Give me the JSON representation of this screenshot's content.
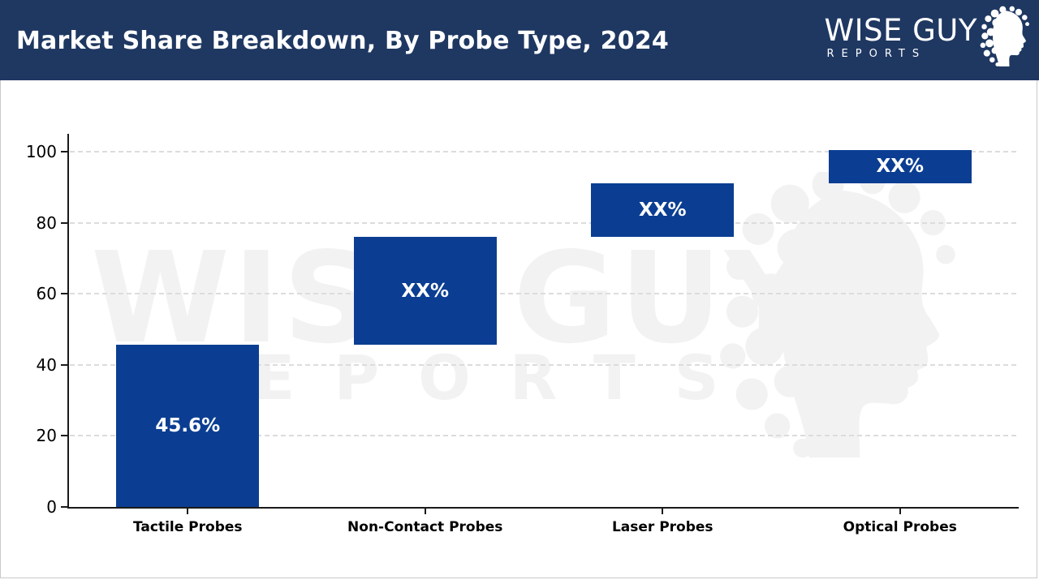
{
  "header": {
    "title": "Market Share Breakdown, By Probe Type, 2024",
    "logo": {
      "wordmark": "WISE GUY",
      "subtext": "REPORTS"
    }
  },
  "watermark": {
    "wordmark": "WISE GUY",
    "subtext": "REPORTS"
  },
  "colors": {
    "header_bg": "#1f3862",
    "bar": "#0b3e92",
    "gridline": "#dcdcdc",
    "axis": "#1a1a1a",
    "frame_border": "#c9c9c9",
    "watermark": "#f2f2f2"
  },
  "chart_data": {
    "type": "bar",
    "subtype": "floating-waterfall",
    "title": "Market Share Breakdown, By Probe Type, 2024",
    "categories": [
      "Tactile Probes",
      "Non-Contact Probes",
      "Laser Probes",
      "Optical Probes"
    ],
    "segments": [
      {
        "category": "Tactile Probes",
        "start": 0,
        "end": 45.6,
        "label": "45.6%"
      },
      {
        "category": "Non-Contact Probes",
        "start": 45.6,
        "end": 76,
        "label": "XX%"
      },
      {
        "category": "Laser Probes",
        "start": 76,
        "end": 91.2,
        "label": "XX%"
      },
      {
        "category": "Optical Probes",
        "start": 91.2,
        "end": 100.4,
        "label": "XX%"
      }
    ],
    "ylim": [
      0,
      105
    ],
    "yticks": [
      0,
      20,
      40,
      60,
      80,
      100
    ],
    "xlabel": "",
    "ylabel": "",
    "grid": "horizontal-dashed",
    "legend": "none",
    "bar_color": "#0b3e92",
    "bar_label_color": "#ffffff"
  }
}
